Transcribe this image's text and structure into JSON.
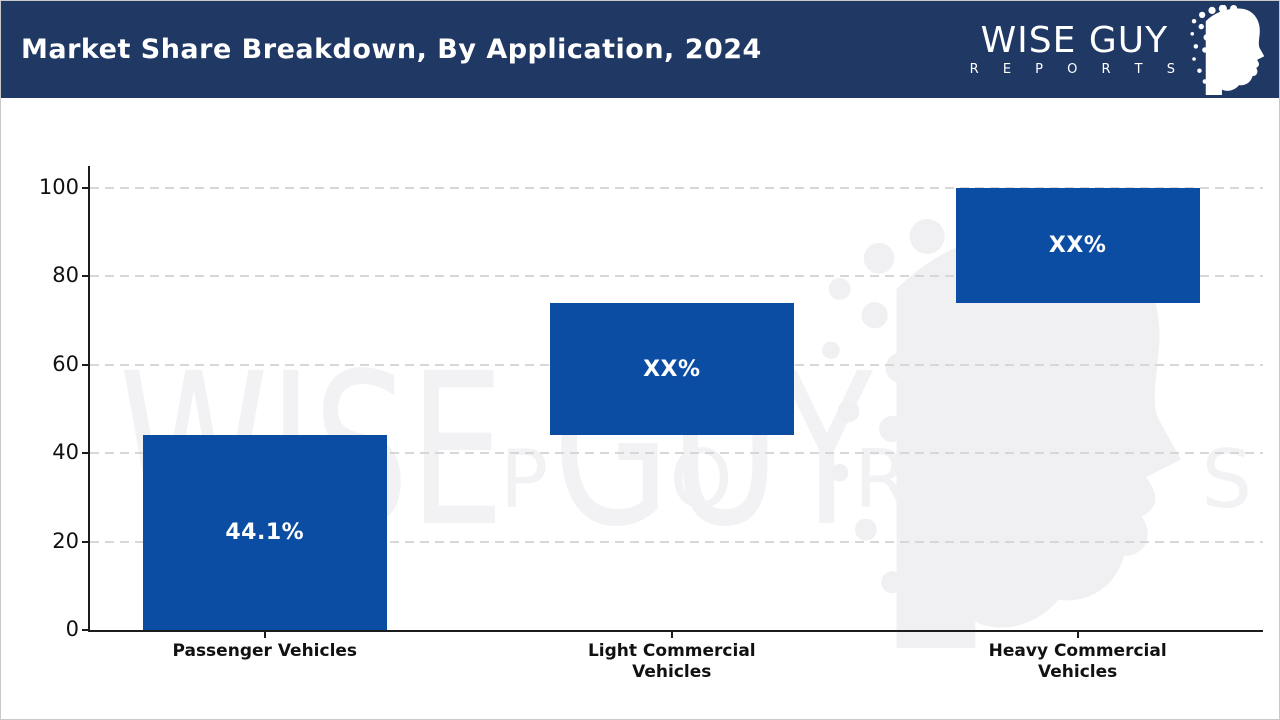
{
  "header": {
    "title": "Market Share Breakdown, By Application, 2024",
    "bg_color": "#1f3864",
    "logo": {
      "line1": "WISE GUY",
      "line2": "R E P O R T S",
      "icon": "dotted-face-profile"
    }
  },
  "watermark": {
    "line1": "WISE GUY",
    "line2": "R E P O R T S",
    "color": "#f2f2f5"
  },
  "chart_data": {
    "type": "bar",
    "subtype": "waterfall-floating-bars",
    "title": "Market Share Breakdown, By Application, 2024",
    "categories": [
      "Passenger Vehicles",
      "Light Commercial Vehicles",
      "Heavy Commercial Vehicles"
    ],
    "category_label_lines": [
      "Passenger Vehicles",
      "Light Commercial\nVehicles",
      "Heavy Commercial\nVehicles"
    ],
    "segments": [
      {
        "category": "Passenger Vehicles",
        "start": 0,
        "end": 44.1,
        "value_label": "44.1%"
      },
      {
        "category": "Light Commercial Vehicles",
        "start": 44.1,
        "end": 73.9,
        "value_label": "XX%"
      },
      {
        "category": "Heavy Commercial Vehicles",
        "start": 73.9,
        "end": 100,
        "value_label": "XX%"
      }
    ],
    "yticks": [
      0,
      20,
      40,
      60,
      80,
      100
    ],
    "ylim": [
      0,
      100
    ],
    "xlabel": "",
    "ylabel": "",
    "legend": "none",
    "grid": "horizontal-dashed",
    "bar_color": "#0b4da2",
    "value_label_color": "#ffffff",
    "grid_color": "#d7d7d7",
    "axis_color": "#1c1c1c"
  }
}
